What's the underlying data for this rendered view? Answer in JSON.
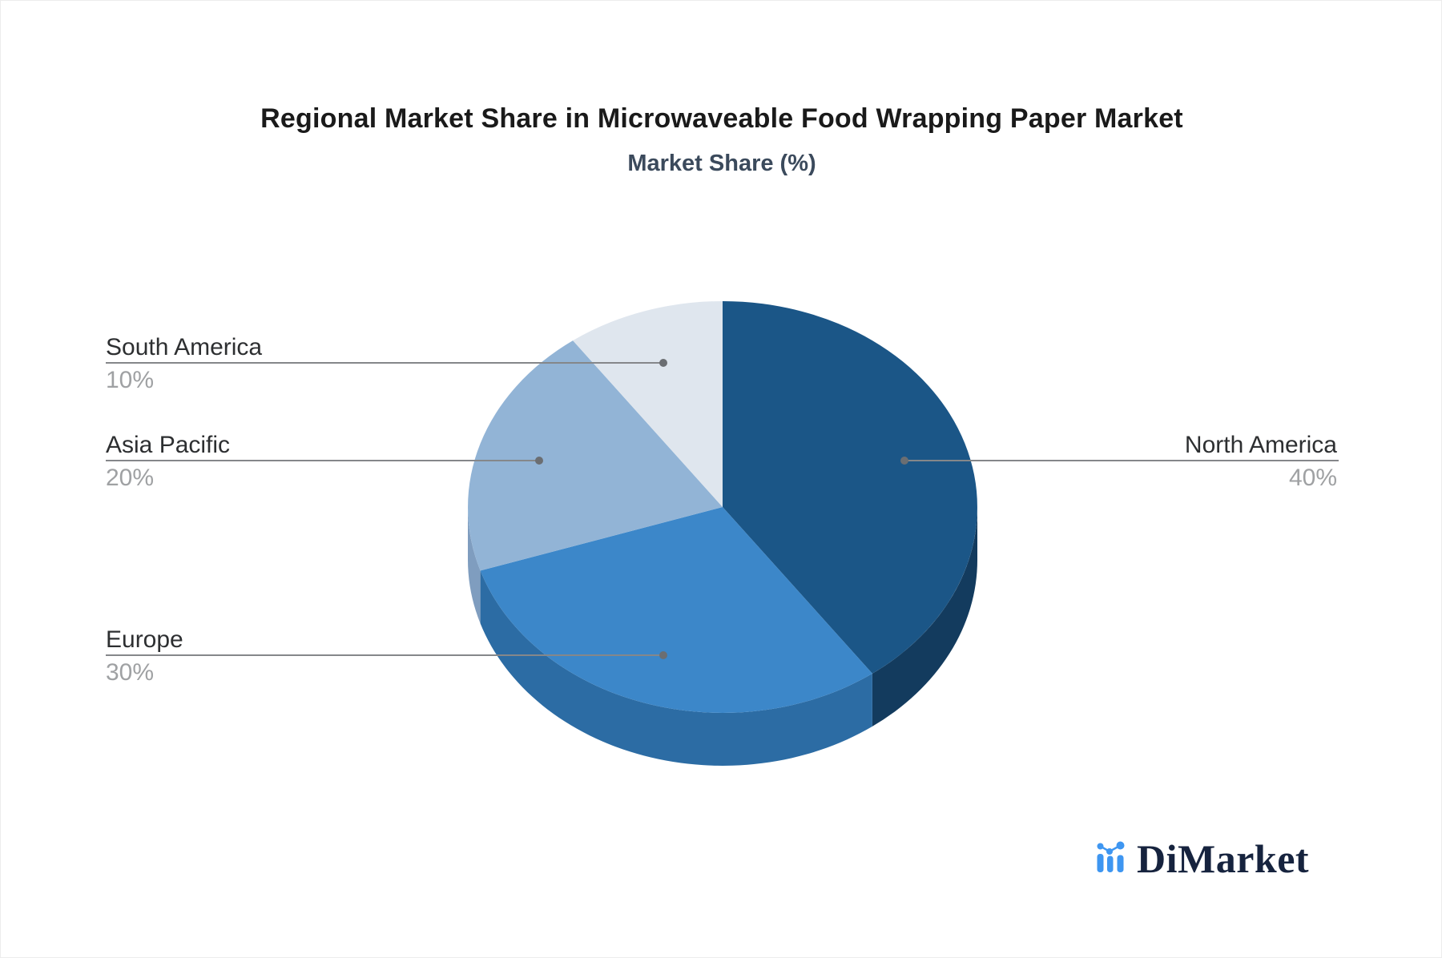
{
  "header": {
    "title": "Regional Market Share in Microwaveable Food Wrapping Paper Market",
    "subtitle": "Market Share (%)"
  },
  "chart_data": {
    "type": "pie",
    "style": "3d",
    "title": "Regional Market Share in Microwaveable Food Wrapping Paper Market",
    "subtitle": "Market Share (%)",
    "unit": "%",
    "direction": "clockwise",
    "start_angle": "12 o'clock",
    "legend_position": "none",
    "label_style": "leader lines with region name above line and percent below",
    "slices": [
      {
        "label": "North America",
        "value": 40,
        "display": "40%",
        "color": "#1b5687",
        "side_color": "#133b5e"
      },
      {
        "label": "Europe",
        "value": 30,
        "display": "30%",
        "color": "#3c87c9",
        "side_color": "#2c6ca4"
      },
      {
        "label": "Asia Pacific",
        "value": 20,
        "display": "20%",
        "color": "#92b4d6",
        "side_color": "#7f9dbf"
      },
      {
        "label": "South America",
        "value": 10,
        "display": "10%",
        "color": "#dfe6ee",
        "side_color": "#c2cdd9"
      }
    ]
  },
  "logo": {
    "text": "DiMarket",
    "icon": "bar-chart-trend-icon",
    "icon_color": "#3e96f1",
    "text_color": "#16233e"
  },
  "colors": {
    "background": "#ffffff",
    "title": "#1a1a1a",
    "subtitle": "#3b4a5c",
    "label_name": "#2d2f31",
    "label_value": "#9fa1a3",
    "leader_line": "#85878a",
    "leader_dot": "#6b6e72"
  }
}
